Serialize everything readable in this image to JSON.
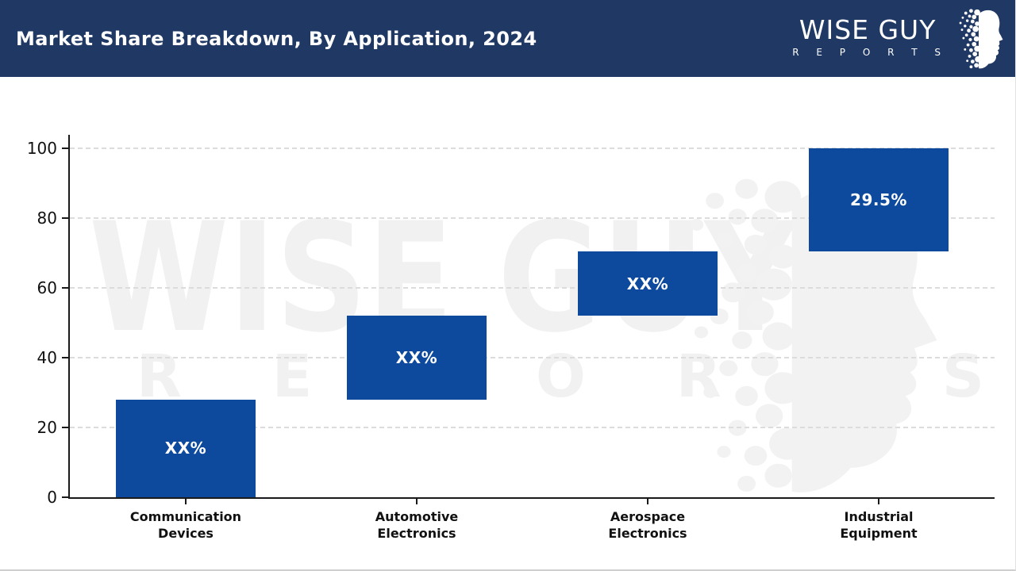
{
  "header": {
    "title": "Market Share Breakdown, By Application, 2024",
    "logo": {
      "line1": "WISE GUY",
      "line2": "R E P O R T S"
    }
  },
  "watermark": {
    "line1": "WISE GUY",
    "line2": "R E P O R T S"
  },
  "colors": {
    "header_bg": "#1f3864",
    "bar": "#0d4a9e",
    "bar_label": "#ffffff",
    "gridline": "#dcdcdc",
    "axis": "#1a1a1a",
    "watermark": "#f1f1f1"
  },
  "chart_data": {
    "type": "bar",
    "subtype": "floating-waterfall",
    "title": "Market Share Breakdown, By Application, 2024",
    "categories": [
      [
        "Communication",
        "Devices"
      ],
      [
        "Automotive",
        "Electronics"
      ],
      [
        "Aerospace",
        "Electronics"
      ],
      [
        "Industrial",
        "Equipment"
      ]
    ],
    "segments": [
      {
        "category": "Communication Devices",
        "start": 0,
        "end": 28,
        "label": "XX%"
      },
      {
        "category": "Automotive Electronics",
        "start": 28,
        "end": 52,
        "label": "XX%"
      },
      {
        "category": "Aerospace Electronics",
        "start": 52,
        "end": 70.5,
        "label": "XX%"
      },
      {
        "category": "Industrial Equipment",
        "start": 70.5,
        "end": 100,
        "label": "29.5%"
      }
    ],
    "xlabel": "",
    "ylabel": "",
    "ylim": [
      0,
      100
    ],
    "yticks": [
      0,
      20,
      40,
      60,
      80,
      100
    ],
    "grid": "horizontal-dashed",
    "legend": "none"
  }
}
